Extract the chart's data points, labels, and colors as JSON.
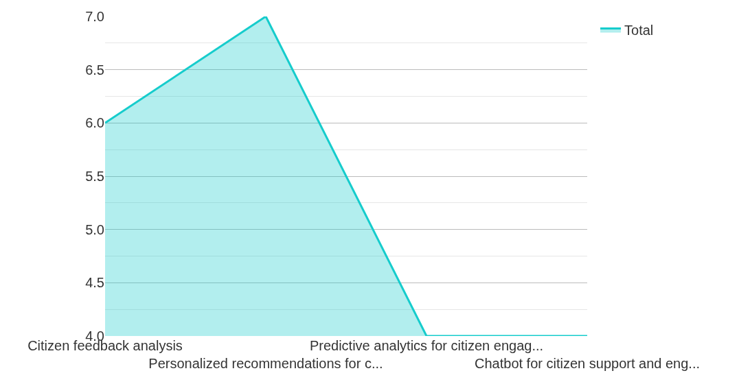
{
  "chart_data": {
    "type": "area",
    "categories": [
      "Citizen feedback analysis",
      "Personalized recommendations for c...",
      "Predictive analytics for citizen engag...",
      "Chatbot for citizen support and eng..."
    ],
    "series": [
      {
        "name": "Total",
        "color": "#16cccc",
        "values": [
          6,
          7,
          4,
          4
        ]
      }
    ],
    "ylim": [
      4,
      7
    ],
    "yticks": [
      {
        "value": 4,
        "label": "4.0"
      },
      {
        "value": 4.5,
        "label": "4.5"
      },
      {
        "value": 5,
        "label": "5.0"
      },
      {
        "value": 5.5,
        "label": "5.5"
      },
      {
        "value": 6,
        "label": "6.0"
      },
      {
        "value": 6.5,
        "label": "6.5"
      },
      {
        "value": 7,
        "label": "7.0"
      }
    ],
    "grid": "y",
    "legend": "top right",
    "marker": "none",
    "line_style": "solid"
  }
}
